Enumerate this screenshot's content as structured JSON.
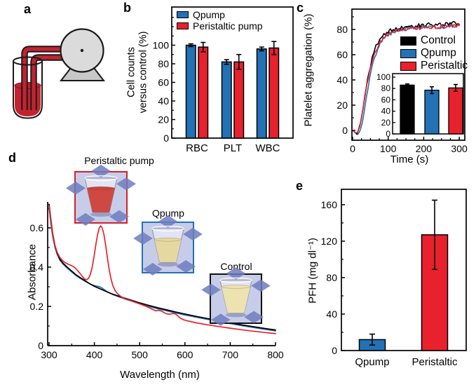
{
  "panels": {
    "a": "a",
    "b": "b",
    "c": "c",
    "d": "d",
    "e": "e"
  },
  "colors": {
    "qpump_blue": "#2272B5",
    "peristaltic_red": "#E8212D",
    "control_black": "#000000",
    "outline": "#1a1a1a",
    "pump_gray": "#DBDBDB",
    "stand_gray": "#C8C8C8",
    "blood_red": "#C32330",
    "photo_bg": "#C7CCE8",
    "photo_diamond": "#6F7DBE"
  },
  "photos": [
    {
      "label": "Peristaltic pump",
      "border_color": "#D6202A",
      "liquid_color": "#CC4038",
      "fill_level": 0.3
    },
    {
      "label": "Qpump",
      "border_color": "#2272B5",
      "liquid_color": "#E5D79C",
      "fill_level": 0.33
    },
    {
      "label": "Control",
      "border_color": "#111111",
      "liquid_color": "#EDE3AC",
      "fill_level": 0.2
    }
  ],
  "chart_data": [
    {
      "id": "b",
      "type": "bar",
      "ylabel": "Cell counts versus control (%)",
      "ylabel_lines": [
        "Cell counts",
        "versus control (%)"
      ],
      "categories": [
        "RBC",
        "PLT",
        "WBC"
      ],
      "series": [
        {
          "name": "Qpump",
          "color": "#2272B5",
          "values": [
            100,
            82,
            96
          ],
          "errors": [
            1.5,
            2.5,
            2
          ]
        },
        {
          "name": "Peristaltic pump",
          "color": "#E8212D",
          "values": [
            98,
            82,
            97
          ],
          "errors": [
            5,
            8,
            7
          ]
        }
      ],
      "ylim": [
        0,
        140
      ],
      "yticks": [
        0,
        20,
        40,
        60,
        80,
        100
      ],
      "legend_position": "top-left"
    },
    {
      "id": "c",
      "type": "line",
      "xlabel": "Time (s)",
      "ylabel": "Platelet aggregation (%)",
      "xlim": [
        -5,
        316
      ],
      "ylim": [
        -8,
        96
      ],
      "xticks": [
        0,
        100,
        200,
        300
      ],
      "yticks": [
        0,
        20,
        40,
        60,
        80
      ],
      "legend_position": "right",
      "series": [
        {
          "name": "Control",
          "color": "#000000",
          "noise": 1.6,
          "points": [
            [
              3,
              -1
            ],
            [
              8,
              -2
            ],
            [
              12,
              -3
            ],
            [
              15,
              -1
            ],
            [
              18,
              2
            ],
            [
              22,
              6
            ],
            [
              26,
              12
            ],
            [
              30,
              19
            ],
            [
              34,
              26
            ],
            [
              38,
              33
            ],
            [
              42,
              40
            ],
            [
              46,
              46
            ],
            [
              50,
              51
            ],
            [
              55,
              57
            ],
            [
              60,
              62
            ],
            [
              66,
              67
            ],
            [
              72,
              70
            ],
            [
              80,
              74
            ],
            [
              88,
              76
            ],
            [
              96,
              78
            ],
            [
              110,
              80
            ],
            [
              130,
              81
            ],
            [
              150,
              82
            ],
            [
              170,
              83
            ],
            [
              190,
              83
            ],
            [
              210,
              84
            ],
            [
              230,
              83
            ],
            [
              250,
              84
            ],
            [
              270,
              84
            ],
            [
              285,
              85
            ],
            [
              300,
              84
            ]
          ]
        },
        {
          "name": "Qpump",
          "color": "#2272B5",
          "noise": 1.4,
          "points": [
            [
              3,
              -1
            ],
            [
              9,
              -2
            ],
            [
              14,
              -3
            ],
            [
              18,
              -2
            ],
            [
              22,
              1
            ],
            [
              27,
              6
            ],
            [
              31,
              12
            ],
            [
              35,
              19
            ],
            [
              39,
              26
            ],
            [
              44,
              34
            ],
            [
              48,
              41
            ],
            [
              52,
              47
            ],
            [
              57,
              53
            ],
            [
              62,
              58
            ],
            [
              68,
              63
            ],
            [
              74,
              67
            ],
            [
              82,
              71
            ],
            [
              90,
              74
            ],
            [
              100,
              76
            ],
            [
              115,
              78
            ],
            [
              135,
              80
            ],
            [
              155,
              81
            ],
            [
              175,
              81
            ],
            [
              195,
              82
            ],
            [
              215,
              82
            ],
            [
              235,
              82
            ],
            [
              255,
              82
            ],
            [
              275,
              83
            ],
            [
              300,
              83
            ]
          ]
        },
        {
          "name": "Peristaltic",
          "color": "#E8212D",
          "noise": 1.6,
          "points": [
            [
              3,
              -1
            ],
            [
              8,
              -2
            ],
            [
              13,
              -2
            ],
            [
              16,
              0
            ],
            [
              20,
              3
            ],
            [
              24,
              8
            ],
            [
              28,
              15
            ],
            [
              32,
              22
            ],
            [
              36,
              29
            ],
            [
              40,
              36
            ],
            [
              44,
              42
            ],
            [
              48,
              47
            ],
            [
              53,
              53
            ],
            [
              58,
              58
            ],
            [
              64,
              63
            ],
            [
              70,
              66
            ],
            [
              78,
              70
            ],
            [
              86,
              73
            ],
            [
              95,
              75
            ],
            [
              108,
              77
            ],
            [
              125,
              79
            ],
            [
              145,
              80
            ],
            [
              165,
              81
            ],
            [
              185,
              81
            ],
            [
              205,
              82
            ],
            [
              225,
              82
            ],
            [
              245,
              82
            ],
            [
              265,
              83
            ],
            [
              285,
              83
            ],
            [
              300,
              83
            ]
          ]
        }
      ],
      "inset": {
        "type": "bar",
        "ylim": [
          0,
          106
        ],
        "yticks": [
          0,
          20,
          40,
          60,
          80,
          100
        ],
        "bars": [
          {
            "name": "Control",
            "value": 86,
            "error": 2,
            "color": "#000000"
          },
          {
            "name": "Qpump",
            "value": 77,
            "error": 6,
            "color": "#2272B5"
          },
          {
            "name": "Peristaltic",
            "value": 81,
            "error": 6,
            "color": "#E8212D"
          }
        ]
      }
    },
    {
      "id": "d",
      "type": "line",
      "xlabel": "Wavelength (nm)",
      "ylabel": "Absorbance",
      "xlim": [
        297,
        800
      ],
      "ylim": [
        0,
        0.73
      ],
      "xticks": [
        300,
        400,
        500,
        600,
        700,
        800
      ],
      "yticks": [
        0,
        0.2,
        0.4,
        0.6
      ],
      "series": [
        {
          "name": "Control",
          "color": "#000000",
          "points": [
            [
              300,
              0.72
            ],
            [
              304,
              0.64
            ],
            [
              308,
              0.57
            ],
            [
              313,
              0.51
            ],
            [
              318,
              0.47
            ],
            [
              324,
              0.44
            ],
            [
              331,
              0.42
            ],
            [
              340,
              0.4
            ],
            [
              350,
              0.38
            ],
            [
              360,
              0.36
            ],
            [
              370,
              0.345
            ],
            [
              380,
              0.33
            ],
            [
              390,
              0.315
            ],
            [
              400,
              0.302
            ],
            [
              410,
              0.292
            ],
            [
              420,
              0.282
            ],
            [
              430,
              0.272
            ],
            [
              440,
              0.263
            ],
            [
              455,
              0.251
            ],
            [
              470,
              0.24
            ],
            [
              485,
              0.229
            ],
            [
              500,
              0.218
            ],
            [
              520,
              0.205
            ],
            [
              540,
              0.193
            ],
            [
              560,
              0.182
            ],
            [
              580,
              0.171
            ],
            [
              600,
              0.161
            ],
            [
              625,
              0.149
            ],
            [
              650,
              0.138
            ],
            [
              675,
              0.127
            ],
            [
              700,
              0.116
            ],
            [
              725,
              0.106
            ],
            [
              750,
              0.097
            ],
            [
              775,
              0.088
            ],
            [
              800,
              0.08
            ]
          ]
        },
        {
          "name": "Qpump",
          "color": "#2272B5",
          "points": [
            [
              300,
              0.7
            ],
            [
              304,
              0.62
            ],
            [
              308,
              0.555
            ],
            [
              313,
              0.5
            ],
            [
              318,
              0.465
            ],
            [
              324,
              0.435
            ],
            [
              331,
              0.415
            ],
            [
              340,
              0.395
            ],
            [
              350,
              0.375
            ],
            [
              360,
              0.356
            ],
            [
              370,
              0.341
            ],
            [
              380,
              0.327
            ],
            [
              390,
              0.315
            ],
            [
              398,
              0.307
            ],
            [
              404,
              0.304
            ],
            [
              410,
              0.301
            ],
            [
              416,
              0.295
            ],
            [
              422,
              0.285
            ],
            [
              430,
              0.272
            ],
            [
              440,
              0.261
            ],
            [
              455,
              0.248
            ],
            [
              470,
              0.236
            ],
            [
              485,
              0.225
            ],
            [
              500,
              0.214
            ],
            [
              520,
              0.2
            ],
            [
              540,
              0.188
            ],
            [
              560,
              0.177
            ],
            [
              580,
              0.166
            ],
            [
              600,
              0.156
            ],
            [
              625,
              0.145
            ],
            [
              650,
              0.134
            ],
            [
              675,
              0.123
            ],
            [
              700,
              0.112
            ],
            [
              725,
              0.102
            ],
            [
              750,
              0.093
            ],
            [
              775,
              0.084
            ],
            [
              800,
              0.075
            ]
          ]
        },
        {
          "name": "Peristaltic",
          "color": "#E8212D",
          "points": [
            [
              300,
              0.71
            ],
            [
              304,
              0.63
            ],
            [
              308,
              0.565
            ],
            [
              313,
              0.51
            ],
            [
              318,
              0.475
            ],
            [
              323,
              0.452
            ],
            [
              328,
              0.437
            ],
            [
              334,
              0.425
            ],
            [
              340,
              0.417
            ],
            [
              346,
              0.411
            ],
            [
              352,
              0.405
            ],
            [
              358,
              0.395
            ],
            [
              364,
              0.38
            ],
            [
              370,
              0.363
            ],
            [
              375,
              0.348
            ],
            [
              379,
              0.339
            ],
            [
              383,
              0.336
            ],
            [
              387,
              0.342
            ],
            [
              391,
              0.362
            ],
            [
              395,
              0.398
            ],
            [
              399,
              0.45
            ],
            [
              403,
              0.51
            ],
            [
              407,
              0.565
            ],
            [
              411,
              0.6
            ],
            [
              414,
              0.61
            ],
            [
              417,
              0.601
            ],
            [
              421,
              0.567
            ],
            [
              425,
              0.51
            ],
            [
              429,
              0.445
            ],
            [
              433,
              0.385
            ],
            [
              437,
              0.338
            ],
            [
              441,
              0.305
            ],
            [
              446,
              0.28
            ],
            [
              452,
              0.262
            ],
            [
              460,
              0.248
            ],
            [
              470,
              0.237
            ],
            [
              485,
              0.225
            ],
            [
              500,
              0.213
            ],
            [
              512,
              0.202
            ],
            [
              522,
              0.192
            ],
            [
              530,
              0.183
            ],
            [
              536,
              0.178
            ],
            [
              542,
              0.18
            ],
            [
              548,
              0.176
            ],
            [
              554,
              0.168
            ],
            [
              560,
              0.162
            ],
            [
              566,
              0.16
            ],
            [
              572,
              0.163
            ],
            [
              578,
              0.163
            ],
            [
              584,
              0.152
            ],
            [
              590,
              0.14
            ],
            [
              598,
              0.131
            ],
            [
              610,
              0.124
            ],
            [
              625,
              0.116
            ],
            [
              650,
              0.106
            ],
            [
              675,
              0.097
            ],
            [
              700,
              0.089
            ],
            [
              725,
              0.081
            ],
            [
              750,
              0.074
            ],
            [
              775,
              0.067
            ],
            [
              800,
              0.061
            ]
          ]
        }
      ]
    },
    {
      "id": "e",
      "type": "bar",
      "ylabel": "PFH (mg dl⁻¹)",
      "categories": [
        "Qpump",
        "Peristaltic"
      ],
      "values": [
        12,
        127
      ],
      "errors": [
        6,
        38
      ],
      "bar_colors": [
        "#2272B5",
        "#E8212D"
      ],
      "ylim": [
        0,
        177
      ],
      "yticks": [
        0,
        40,
        80,
        120,
        160
      ]
    }
  ]
}
